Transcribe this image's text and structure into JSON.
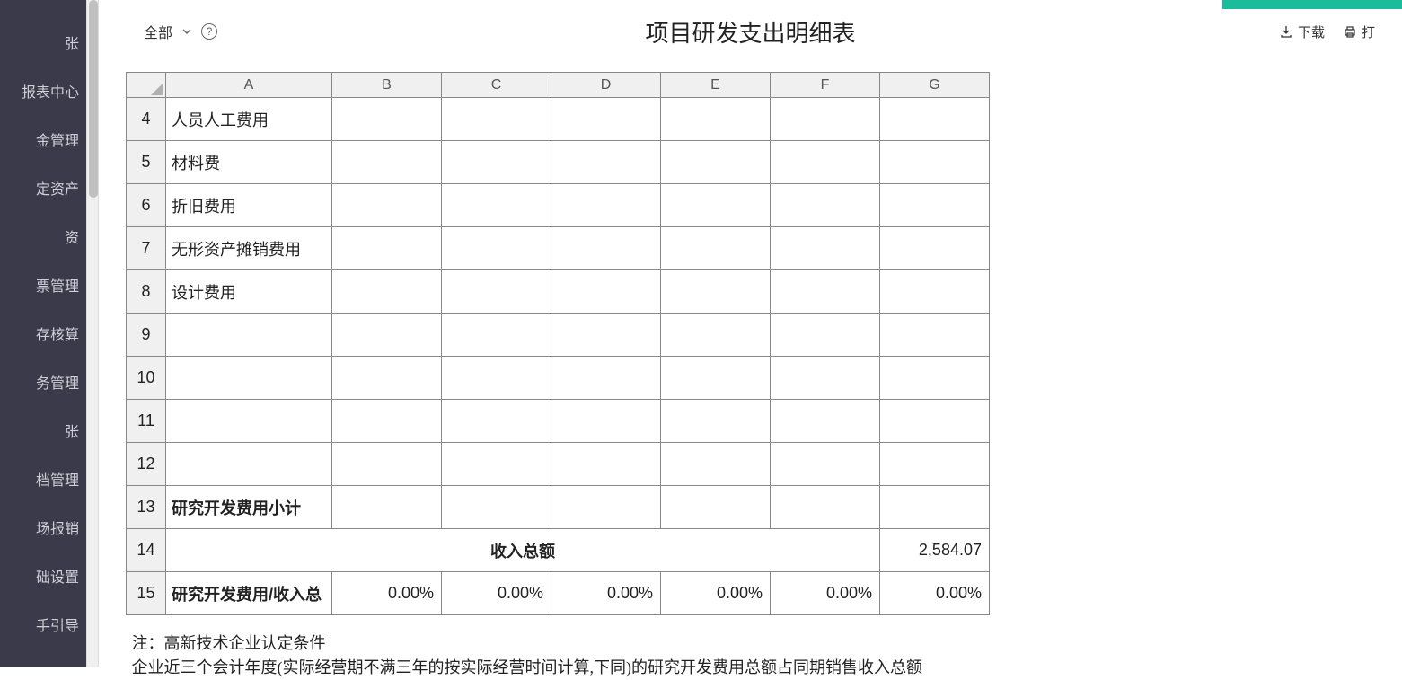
{
  "sidebar": {
    "items": [
      {
        "label": "张"
      },
      {
        "label": "报表中心"
      },
      {
        "label": "金管理"
      },
      {
        "label": "定资产"
      },
      {
        "label": "资"
      },
      {
        "label": "票管理"
      },
      {
        "label": "存核算"
      },
      {
        "label": "务管理"
      },
      {
        "label": "张"
      },
      {
        "label": "档管理"
      },
      {
        "label": "场报销"
      },
      {
        "label": "础设置"
      },
      {
        "label": "手引导"
      }
    ]
  },
  "toolbar": {
    "filter_label": "全部",
    "download_label": "下载",
    "print_label": "打"
  },
  "title": "项目研发支出明细表",
  "sheet": {
    "col_headers": [
      "A",
      "B",
      "C",
      "D",
      "E",
      "F",
      "G"
    ],
    "row_numbers": [
      "4",
      "5",
      "6",
      "7",
      "8",
      "9",
      "10",
      "11",
      "12",
      "13",
      "14",
      "15"
    ],
    "rows": [
      {
        "a": "人员人工费用",
        "cells": [
          "",
          "",
          "",
          "",
          "",
          ""
        ]
      },
      {
        "a": "材料费",
        "cells": [
          "",
          "",
          "",
          "",
          "",
          ""
        ]
      },
      {
        "a": "折旧费用",
        "cells": [
          "",
          "",
          "",
          "",
          "",
          ""
        ]
      },
      {
        "a": "无形资产摊销费用",
        "cells": [
          "",
          "",
          "",
          "",
          "",
          ""
        ]
      },
      {
        "a": "设计费用",
        "cells": [
          "",
          "",
          "",
          "",
          "",
          ""
        ]
      },
      {
        "a": "",
        "cells": [
          "",
          "",
          "",
          "",
          "",
          ""
        ]
      },
      {
        "a": "",
        "cells": [
          "",
          "",
          "",
          "",
          "",
          ""
        ]
      },
      {
        "a": "",
        "cells": [
          "",
          "",
          "",
          "",
          "",
          ""
        ]
      },
      {
        "a": "",
        "cells": [
          "",
          "",
          "",
          "",
          "",
          ""
        ]
      },
      {
        "a": "研究开发费用小计",
        "cells": [
          "",
          "",
          "",
          "",
          "",
          ""
        ]
      }
    ],
    "row14": {
      "merged_label": "收入总额",
      "value": "2,584.07"
    },
    "row15": {
      "a": "研究开发费用/收入总",
      "cells": [
        "0.00%",
        "0.00%",
        "0.00%",
        "0.00%",
        "0.00%",
        "0.00%"
      ]
    },
    "footnote": {
      "line1": "注：高新技术企业认定条件",
      "line2": "企业近三个会计年度(实际经营期不满三年的按实际经营时间计算,下同)的研究开发费用总额占同期销售收入总额"
    }
  },
  "colors": {
    "sidebar_bg": "#3a3a4a",
    "accent": "#1abc9c",
    "border": "#888888",
    "header_bg": "#f0f0f0"
  }
}
